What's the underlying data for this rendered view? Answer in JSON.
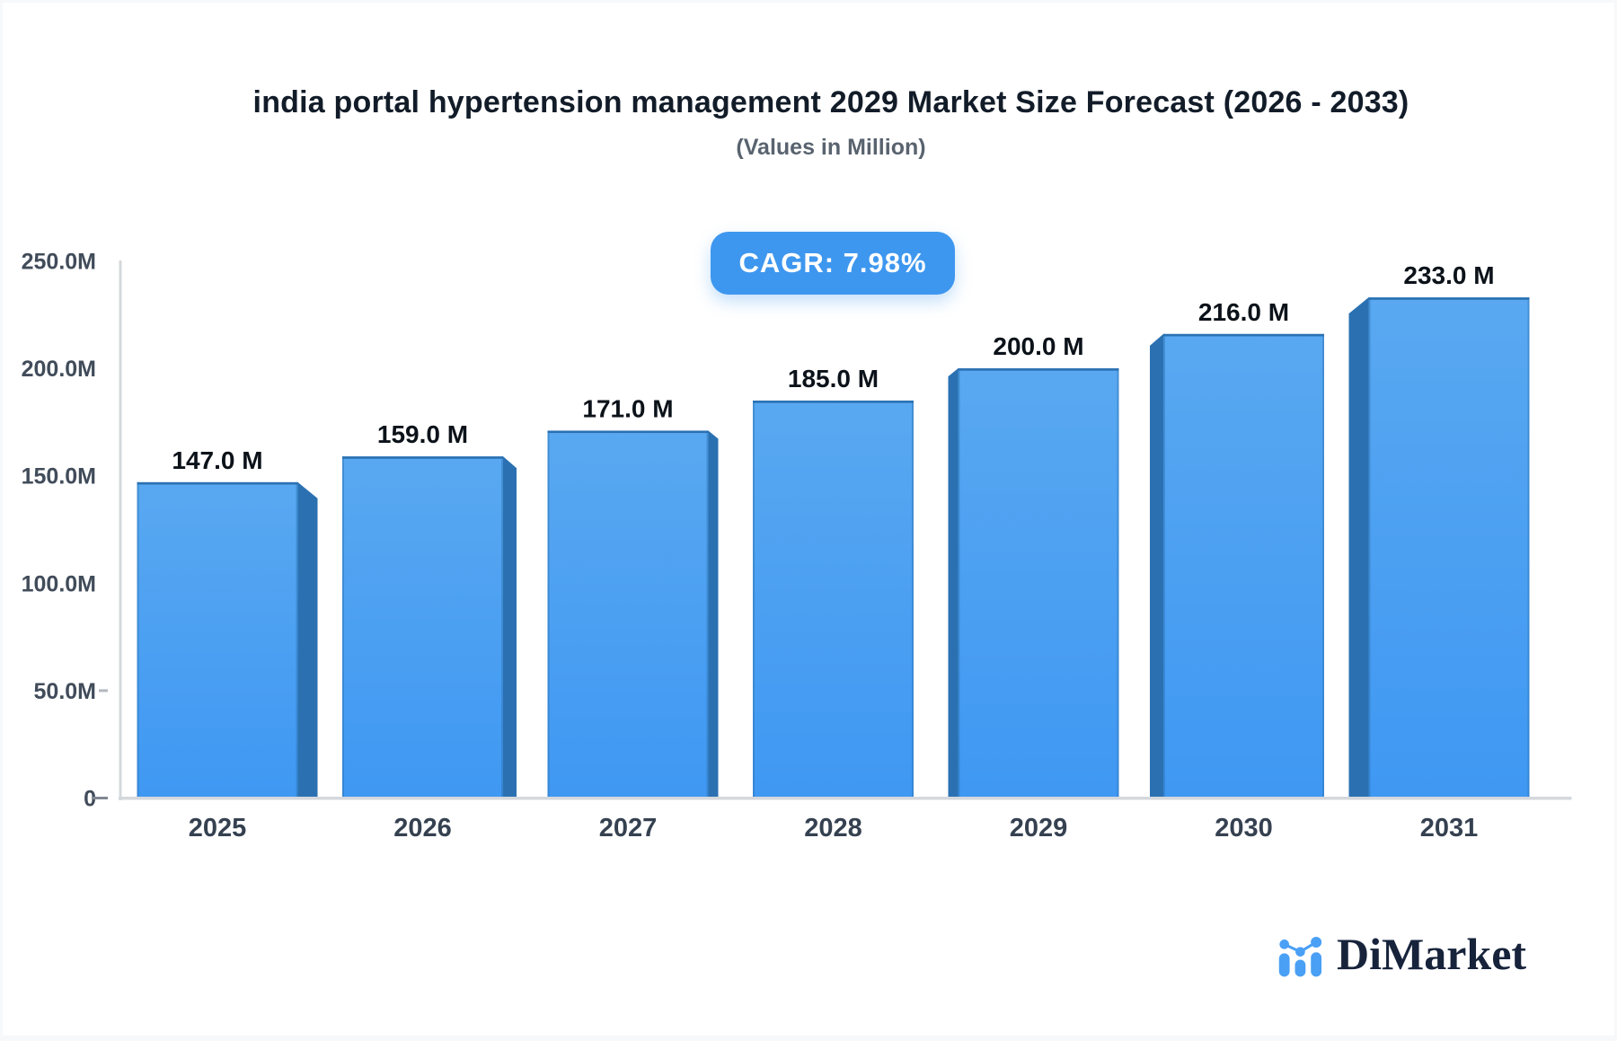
{
  "header": {
    "title": "india portal hypertension management 2029 Market Size Forecast (2026 - 2033)",
    "subtitle": "(Values in Million)"
  },
  "badge": {
    "label": "CAGR: 7.98%",
    "color": "#3e97ef"
  },
  "logo": {
    "text": "DiMarket",
    "text_color": "#17233b",
    "icon_color": "#4aa0f5"
  },
  "chart_data": {
    "type": "bar",
    "title": "india portal hypertension management 2029 Market Size Forecast (2026 - 2033)",
    "subtitle": "(Values in Million)",
    "unit": "Million",
    "categories": [
      "2025",
      "2026",
      "2027",
      "2028",
      "2029",
      "2030",
      "2031"
    ],
    "values": [
      147,
      159,
      171,
      185,
      200,
      216,
      233
    ],
    "value_labels": [
      "147.0 M",
      "159.0 M",
      "171.0 M",
      "185.0 M",
      "200.0 M",
      "216.0 M",
      "233.0 M"
    ],
    "xlabel": "",
    "ylabel": "",
    "ylim": [
      0,
      250
    ],
    "ytick_values": [
      0,
      50,
      100,
      150,
      200,
      250
    ],
    "ytick_labels": [
      "0",
      "50.0M",
      "100.0M",
      "150.0M",
      "200.0M",
      "250.0M"
    ],
    "grid": false,
    "legend": false,
    "annotations": [
      "CAGR: 7.98%"
    ],
    "colors": {
      "bar_top": "#59a8f1",
      "bar_bottom": "#3f98f2",
      "bar_side": "#2b71b2",
      "axis_line": "#d4d8dc",
      "tick_zero": "#818893",
      "tick_minor": "#b3b8bf"
    }
  }
}
